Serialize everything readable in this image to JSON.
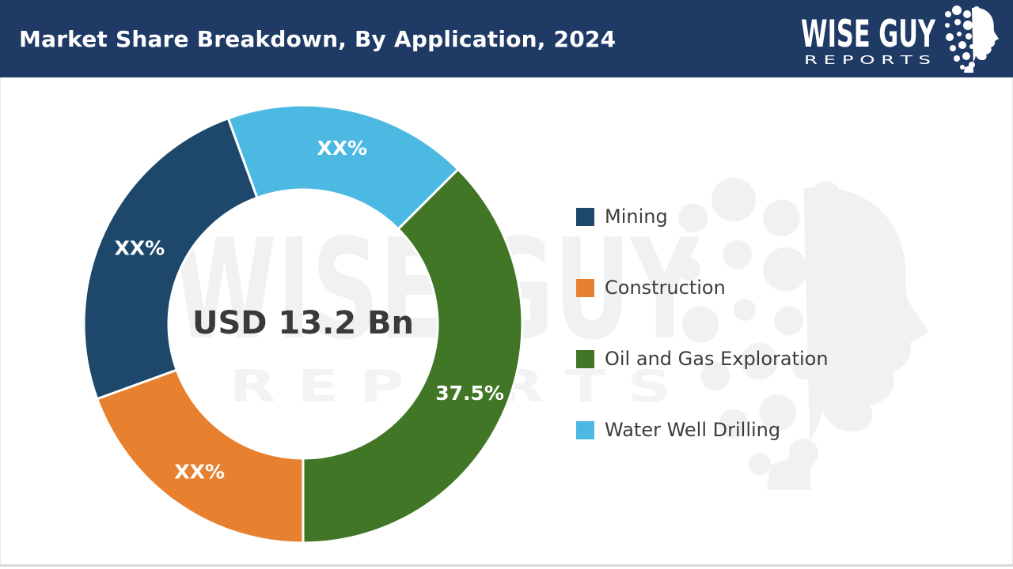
{
  "header": {
    "title": "Market Share Breakdown, By Application, 2024",
    "logo": {
      "line1": "WISE GUY",
      "line2": "R E P O R T S"
    },
    "background_color": "#203A66"
  },
  "watermark": {
    "line1": "WISE GUY",
    "line2": "R E P O R T S",
    "color": "#f1f1f1"
  },
  "chart_data": {
    "type": "pie",
    "variant": "donut",
    "title": "Market Share Breakdown, By Application, 2024",
    "center_label": "USD 13.2 Bn",
    "legend_position": "right",
    "start_angle_deg": 340,
    "segments": [
      {
        "name": "Water Well Drilling",
        "display_label": "XX%",
        "value_pct_est": 18.1,
        "sweep_deg": 65,
        "color": "#4CB9E2"
      },
      {
        "name": "Oil and Gas Exploration",
        "display_label": "37.5%",
        "value_pct_est": 37.5,
        "sweep_deg": 135,
        "color": "#417627"
      },
      {
        "name": "Construction",
        "display_label": "XX%",
        "value_pct_est": 19.4,
        "sweep_deg": 70,
        "color": "#E8812F"
      },
      {
        "name": "Mining",
        "display_label": "XX%",
        "value_pct_est": 25.0,
        "sweep_deg": 90,
        "color": "#1E486B"
      }
    ]
  },
  "legend": {
    "items": [
      {
        "label": "Mining",
        "color": "#1E486B"
      },
      {
        "label": "Construction",
        "color": "#E8812F"
      },
      {
        "label": "Oil and Gas Exploration",
        "color": "#417627"
      },
      {
        "label": "Water Well Drilling",
        "color": "#4CB9E2"
      }
    ]
  }
}
